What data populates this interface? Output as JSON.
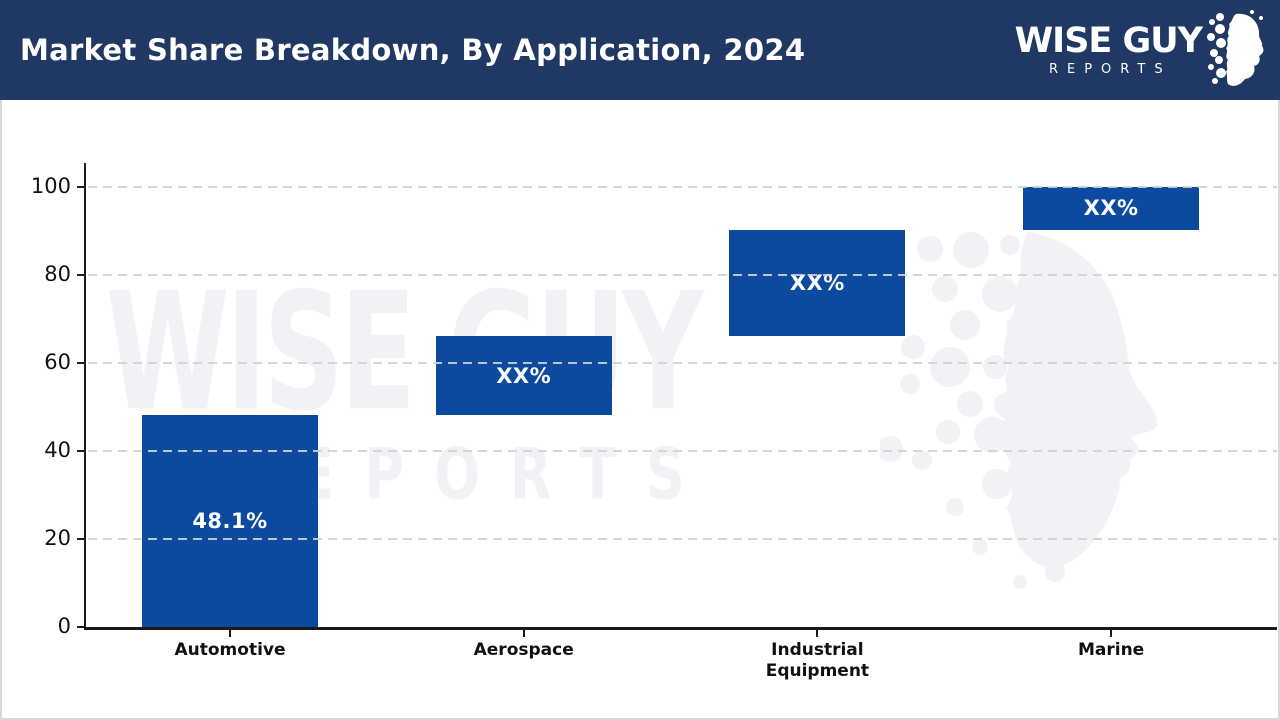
{
  "header": {
    "title": "Market Share Breakdown, By Application, 2024",
    "logo": {
      "line1": "WISE GUY",
      "line2": "REPORTS"
    }
  },
  "watermark": {
    "line1": "WISE GUY",
    "line2": "REPORTS"
  },
  "chart_data": {
    "type": "bar",
    "subtype": "waterfall",
    "title": "Market Share Breakdown, By Application, 2024",
    "categories": [
      "Automotive",
      "Aerospace",
      "Industrial Equipment",
      "Marine"
    ],
    "segments": [
      {
        "category": "Automotive",
        "start": 0,
        "end": 48.1,
        "label": "48.1%"
      },
      {
        "category": "Aerospace",
        "start": 48.1,
        "end": 66.2,
        "label": "XX%"
      },
      {
        "category": "Industrial Equipment",
        "start": 66.2,
        "end": 90.2,
        "label": "XX%"
      },
      {
        "category": "Marine",
        "start": 90.2,
        "end": 100.1,
        "label": "XX%"
      }
    ],
    "yticks": [
      0,
      20,
      40,
      60,
      80,
      100
    ],
    "ylim": [
      0,
      105.5
    ],
    "xlabel": "",
    "ylabel": "",
    "grid": "horizontal-dashed",
    "legend": "none",
    "bar_color": "#0b4a9e",
    "bar_label_color": "#ffffff"
  },
  "colors": {
    "header_bg": "#1f3864",
    "bar": "#0b4a9e",
    "watermark": "#f1f2f5",
    "grid": "#d2d2d2",
    "axis": "#1a1a1a",
    "frame_border": "#d9d9d9"
  }
}
